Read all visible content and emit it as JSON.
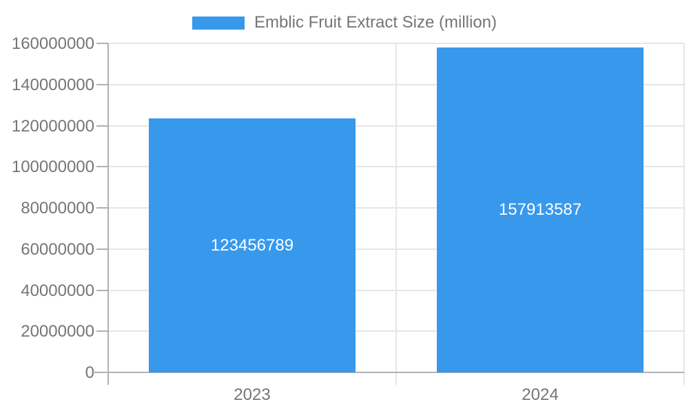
{
  "chart_data": {
    "type": "bar",
    "title": "Emblic Fruit Extract Size (million)",
    "categories": [
      "2023",
      "2024"
    ],
    "series": [
      {
        "name": "Emblic Fruit Extract Size (million)",
        "values": [
          123456789,
          157913587
        ]
      }
    ],
    "value_labels": [
      "123456789",
      "157913587"
    ],
    "xlabel": "",
    "ylabel": "",
    "ylim": [
      0,
      160000000
    ],
    "yticks": [
      0,
      20000000,
      40000000,
      60000000,
      80000000,
      100000000,
      120000000,
      140000000,
      160000000
    ],
    "ytick_labels": [
      "0",
      "20000000",
      "40000000",
      "60000000",
      "80000000",
      "100000000",
      "120000000",
      "140000000",
      "160000000"
    ],
    "grid": true,
    "legend_position": "top-center",
    "colors": {
      "bar": "#3899EC",
      "grid": "#E6E6E6",
      "axis": "#B0B0B0",
      "text": "#757575",
      "value_label": "#FFFFFF",
      "background": "#FFFFFF"
    }
  }
}
